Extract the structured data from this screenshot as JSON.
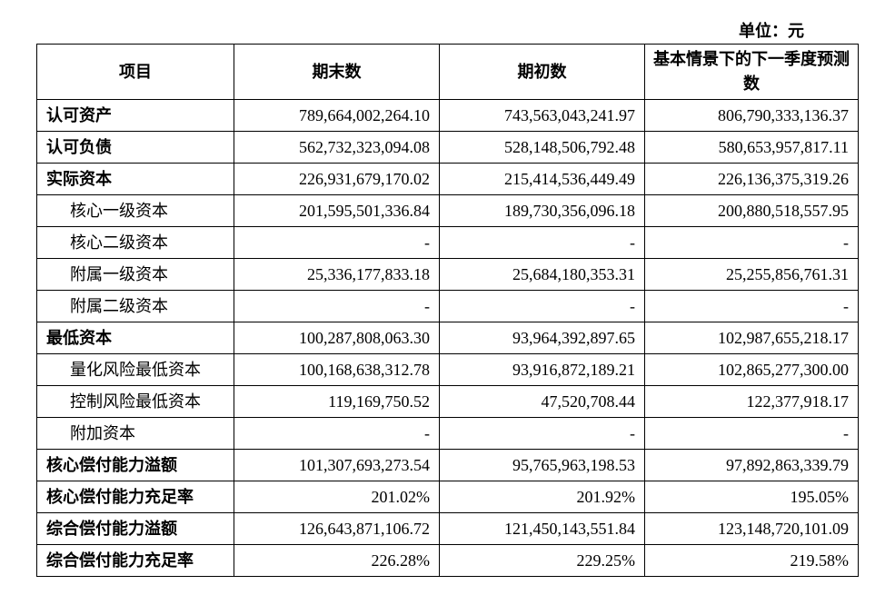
{
  "unit_label": "单位：元",
  "headers": {
    "item": "项目",
    "end": "期末数",
    "begin": "期初数",
    "forecast": "基本情景下的下一季度预测数"
  },
  "rows": [
    {
      "label": "认可资产",
      "indent": false,
      "end": "789,664,002,264.10",
      "begin": "743,563,043,241.97",
      "forecast": "806,790,333,136.37"
    },
    {
      "label": "认可负债",
      "indent": false,
      "end": "562,732,323,094.08",
      "begin": "528,148,506,792.48",
      "forecast": "580,653,957,817.11"
    },
    {
      "label": "实际资本",
      "indent": false,
      "end": "226,931,679,170.02",
      "begin": "215,414,536,449.49",
      "forecast": "226,136,375,319.26"
    },
    {
      "label": "核心一级资本",
      "indent": true,
      "end": "201,595,501,336.84",
      "begin": "189,730,356,096.18",
      "forecast": "200,880,518,557.95"
    },
    {
      "label": "核心二级资本",
      "indent": true,
      "end": "-",
      "begin": "-",
      "forecast": "-"
    },
    {
      "label": "附属一级资本",
      "indent": true,
      "end": "25,336,177,833.18",
      "begin": "25,684,180,353.31",
      "forecast": "25,255,856,761.31"
    },
    {
      "label": "附属二级资本",
      "indent": true,
      "end": "-",
      "begin": "-",
      "forecast": "-"
    },
    {
      "label": "最低资本",
      "indent": false,
      "end": "100,287,808,063.30",
      "begin": "93,964,392,897.65",
      "forecast": "102,987,655,218.17"
    },
    {
      "label": "量化风险最低资本",
      "indent": true,
      "end": "100,168,638,312.78",
      "begin": "93,916,872,189.21",
      "forecast": "102,865,277,300.00"
    },
    {
      "label": "控制风险最低资本",
      "indent": true,
      "end": "119,169,750.52",
      "begin": "47,520,708.44",
      "forecast": "122,377,918.17"
    },
    {
      "label": "附加资本",
      "indent": true,
      "end": "-",
      "begin": "-",
      "forecast": "-"
    },
    {
      "label": "核心偿付能力溢额",
      "indent": false,
      "end": "101,307,693,273.54",
      "begin": "95,765,963,198.53",
      "forecast": "97,892,863,339.79"
    },
    {
      "label": "核心偿付能力充足率",
      "indent": false,
      "end": "201.02%",
      "begin": "201.92%",
      "forecast": "195.05%"
    },
    {
      "label": "综合偿付能力溢额",
      "indent": false,
      "end": "126,643,871,106.72",
      "begin": "121,450,143,551.84",
      "forecast": "123,148,720,101.09"
    },
    {
      "label": "综合偿付能力充足率",
      "indent": false,
      "end": "226.28%",
      "begin": "229.25%",
      "forecast": "219.58%"
    }
  ]
}
